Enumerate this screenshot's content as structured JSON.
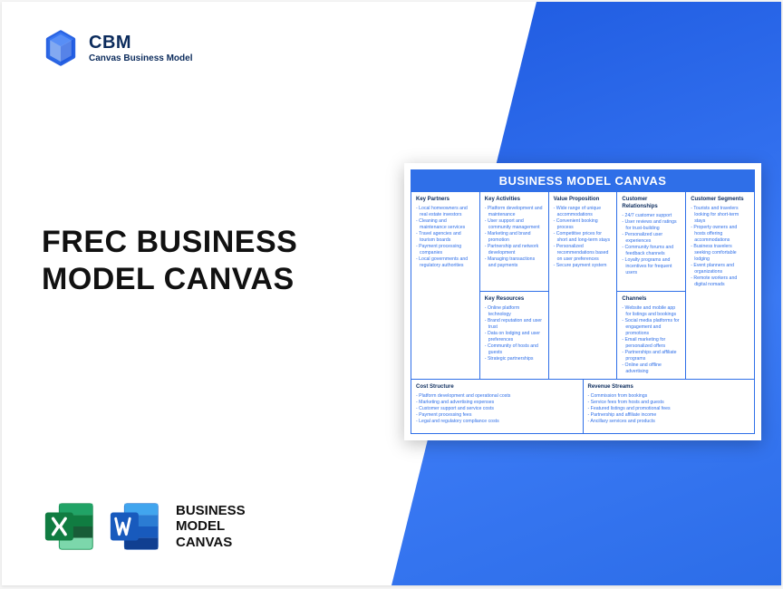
{
  "brand": {
    "name": "CBM",
    "sub": "Canvas Business Model"
  },
  "title_line1": "FREC BUSINESS",
  "title_line2": "MODEL CANVAS",
  "file_label_l1": "BUSINESS",
  "file_label_l2": "MODEL",
  "file_label_l3": "CANVAS",
  "canvas": {
    "title": "BUSINESS MODEL CANVAS",
    "key_partners": {
      "h": "Key Partners",
      "items": [
        "- Local homeowners and real estate investors",
        "- Cleaning and maintenance services",
        "- Travel agencies and tourism boards",
        "- Payment processing companies",
        "- Local governments and regulatory authorities"
      ]
    },
    "key_activities": {
      "h": "Key Activities",
      "items": [
        "- Platform development and maintenance",
        "- User support and community management",
        "- Marketing and brand promotion",
        "- Partnership and network development",
        "- Managing transactions and payments"
      ]
    },
    "key_resources": {
      "h": "Key Resources",
      "items": [
        "- Online platform technology",
        "- Brand reputation and user trust",
        "- Data on lodging and user preferences",
        "- Community of hosts and guests",
        "- Strategic partnerships"
      ]
    },
    "value_proposition": {
      "h": "Value Proposition",
      "items": [
        "- Wide range of unique accommodations",
        "- Convenient booking process",
        "- Competitive prices for short and long-term stays",
        "- Personalized recommendations based on user preferences",
        "- Secure payment system"
      ]
    },
    "customer_relationships": {
      "h": "Customer Relationships",
      "items": [
        "- 24/7 customer support",
        "- User reviews and ratings for trust-building",
        "- Personalized user experiences",
        "- Community forums and feedback channels",
        "- Loyalty programs and incentives for frequent users"
      ]
    },
    "channels": {
      "h": "Channels",
      "items": [
        "- Website and mobile app for listings and bookings",
        "- Social media platforms for engagement and promotions",
        "- Email marketing for personalized offers",
        "- Partnerships and affiliate programs",
        "- Online and offline advertising"
      ]
    },
    "customer_segments": {
      "h": "Customer Segments",
      "items": [
        "- Tourists and travelers looking for short-term stays",
        "- Property owners and hosts offering accommodations",
        "- Business travelers seeking comfortable lodging",
        "- Event planners and organizations",
        "- Remote workers and digital nomads"
      ]
    },
    "cost_structure": {
      "h": "Cost Structure",
      "items": [
        "- Platform development and operational costs",
        "- Marketing and advertising expenses",
        "- Customer support and service costs",
        "- Payment processing fees",
        "- Legal and regulatory compliance costs"
      ]
    },
    "revenue_streams": {
      "h": "Revenue Streams",
      "items": [
        "- Commission from bookings",
        "- Service fees from hosts and guests",
        "- Featured listings and promotional fees",
        "- Partnership and affiliate income",
        "- Ancillary services and products"
      ]
    }
  },
  "colors": {
    "accent": "#2f6fe8",
    "dark": "#0b2b5c",
    "excel": "#107c41",
    "word": "#185abd"
  }
}
